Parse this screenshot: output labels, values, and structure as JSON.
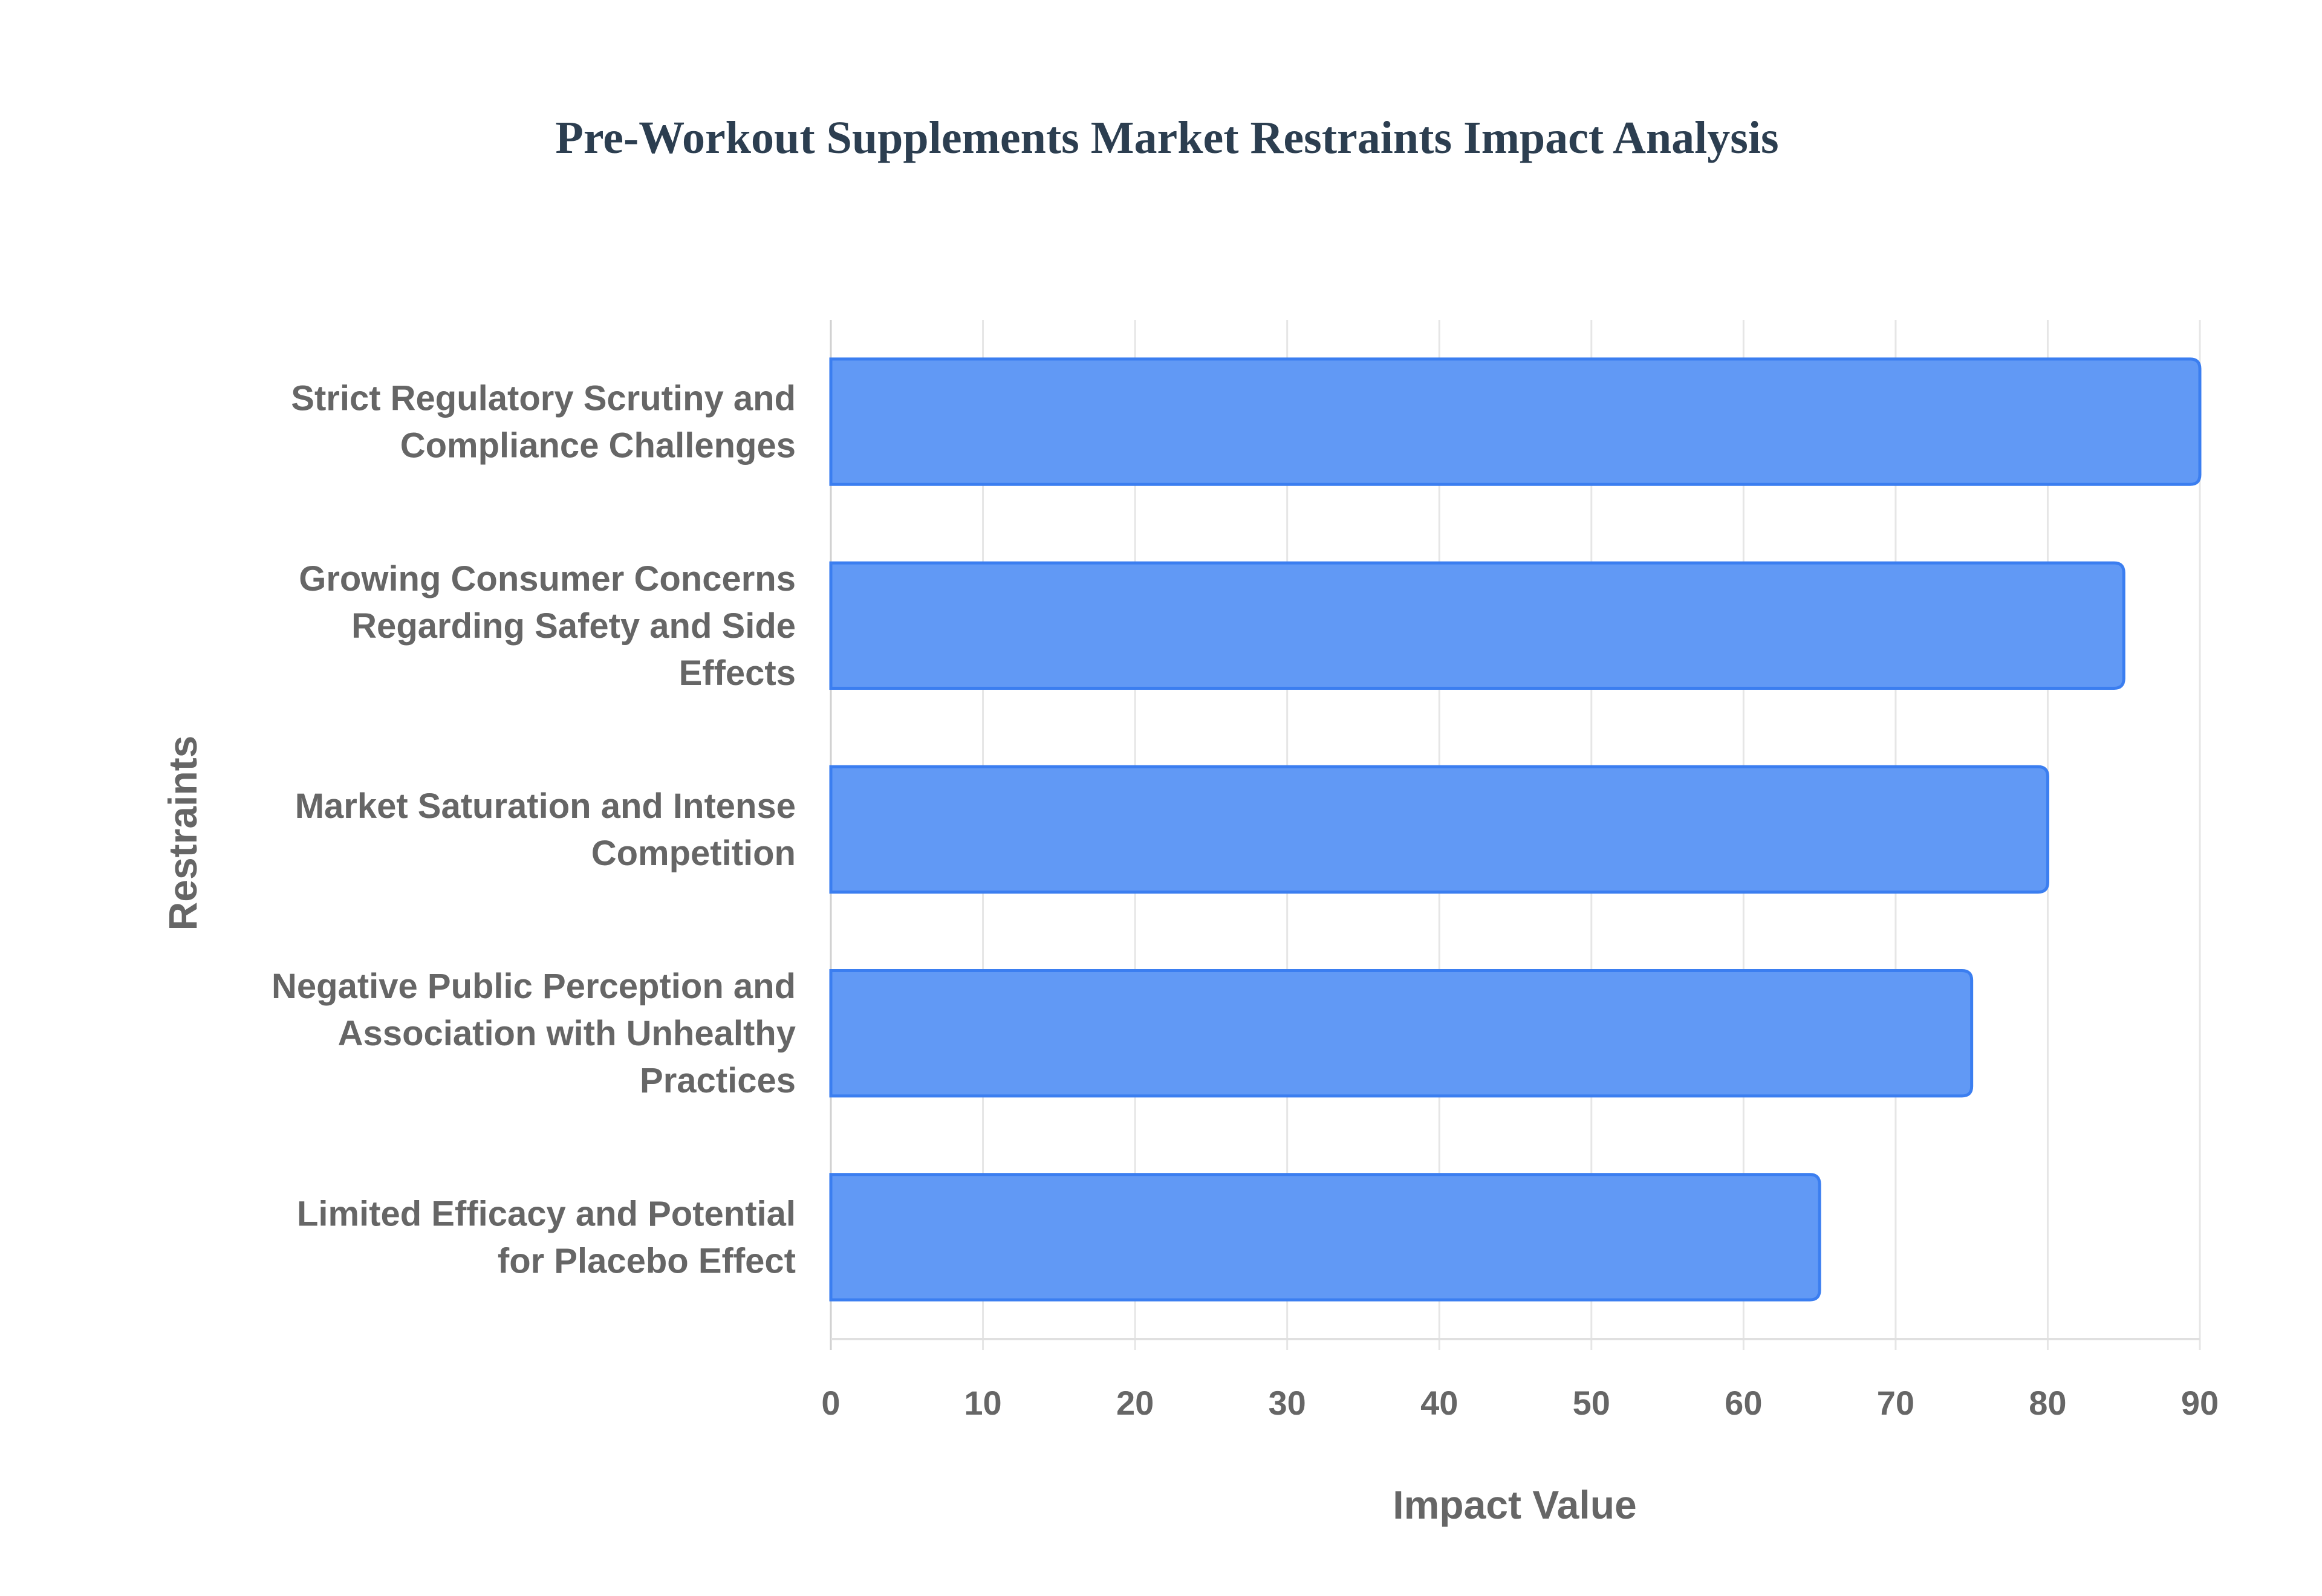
{
  "chart_data": {
    "type": "bar",
    "orientation": "horizontal",
    "title": "Pre-Workout Supplements Market Restraints Impact Analysis",
    "xlabel": "Impact Value",
    "ylabel": "Restraints",
    "xlim": [
      0,
      90
    ],
    "xticks": [
      0,
      10,
      20,
      30,
      40,
      50,
      60,
      70,
      80,
      90
    ],
    "grid": true,
    "categories": [
      [
        "Strict Regulatory Scrutiny and",
        "Compliance Challenges"
      ],
      [
        "Growing Consumer Concerns",
        "Regarding Safety and Side",
        "Effects"
      ],
      [
        "Market Saturation and Intense",
        "Competition"
      ],
      [
        "Negative Public Perception and",
        "Association with Unhealthy",
        "Practices"
      ],
      [
        "Limited Efficacy and Potential",
        "for Placebo Effect"
      ]
    ],
    "values": [
      90,
      85,
      80,
      75,
      65
    ],
    "colors": {
      "bar_fill": "#6199f5",
      "bar_border": "#3b7ef0",
      "grid": "#e6e6e6"
    }
  }
}
